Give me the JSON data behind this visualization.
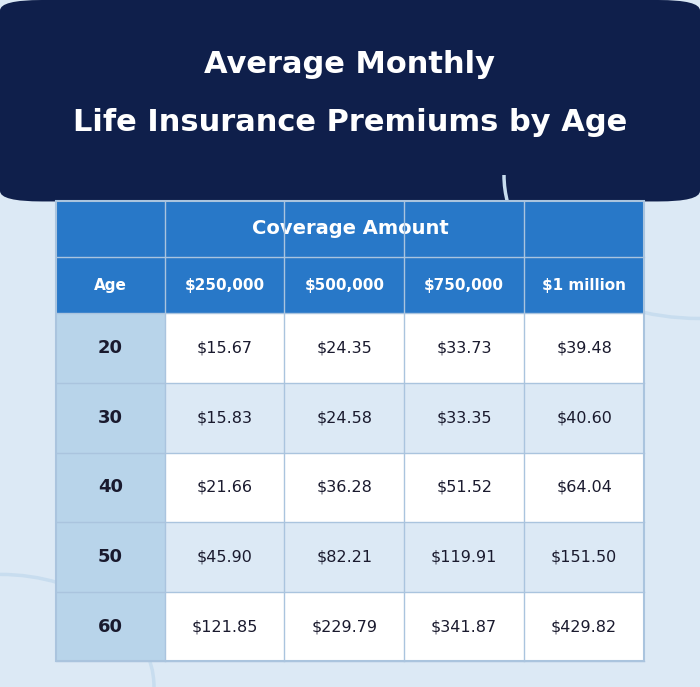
{
  "title_line1": "Average Monthly",
  "title_line2": "Life Insurance Premiums by Age",
  "title_bg_color": "#0f1f4b",
  "title_text_color": "#ffffff",
  "body_bg_color": "#dce9f5",
  "coverage_header": "Coverage Amount",
  "coverage_header_bg": "#2878c8",
  "coverage_header_text_color": "#ffffff",
  "col_header_bg": "#2878c8",
  "col_header_text_color": "#ffffff",
  "age_col_bg": "#b8d4ea",
  "age_col_text_color": "#1a1a2e",
  "row_bg_even": "#ffffff",
  "row_bg_odd": "#dce9f5",
  "grid_line_color": "#aac4de",
  "data_text_color": "#1a1a2e",
  "col_headers": [
    "Age",
    "$250,000",
    "$500,000",
    "$750,000",
    "$1 million"
  ],
  "ages": [
    "20",
    "30",
    "40",
    "50",
    "60"
  ],
  "data": [
    [
      "$15.67",
      "$24.35",
      "$33.73",
      "$39.48"
    ],
    [
      "$15.83",
      "$24.58",
      "$33.35",
      "$40.60"
    ],
    [
      "$21.66",
      "$36.28",
      "$51.52",
      "$64.04"
    ],
    [
      "$45.90",
      "$82.21",
      "$119.91",
      "$151.50"
    ],
    [
      "$121.85",
      "$229.79",
      "$341.87",
      "$429.82"
    ]
  ],
  "circle_color": "#c8ddef",
  "figsize": [
    7.0,
    6.87
  ],
  "dpi": 100
}
